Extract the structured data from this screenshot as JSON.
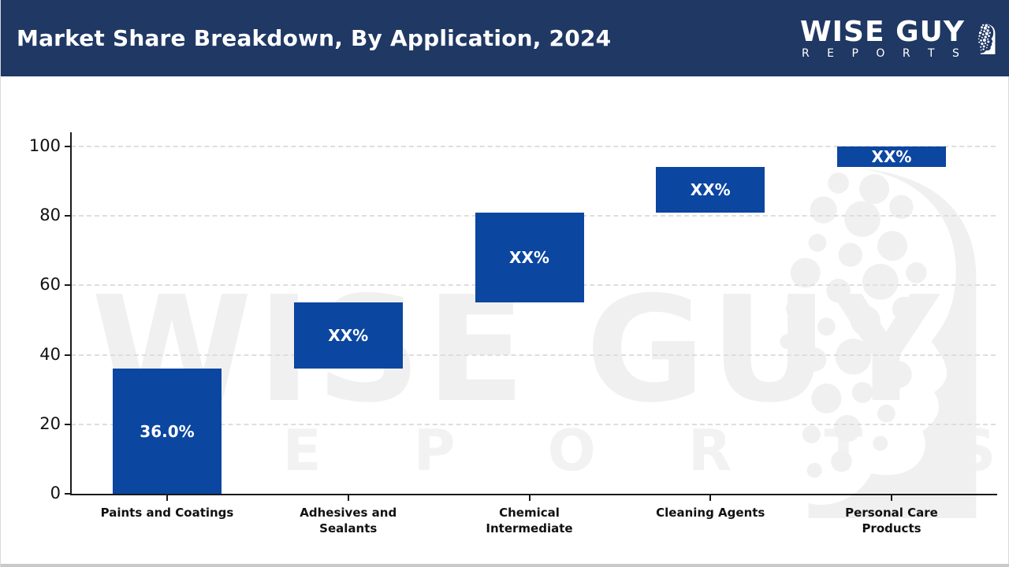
{
  "header": {
    "title": "Market Share Breakdown, By Application, 2024",
    "bg_color": "#1f3864",
    "logo": {
      "line1": "WISE GUY",
      "line2": "R E P O R T S"
    }
  },
  "watermark": {
    "line1": "WISE GUY",
    "line2": "R E P O R T S"
  },
  "chart_data": {
    "type": "bar",
    "subtype": "waterfall",
    "title": "Market Share Breakdown, By Application, 2024",
    "categories": [
      "Paints and Coatings",
      "Adhesives and Sealants",
      "Chemical Intermediate",
      "Cleaning Agents",
      "Personal Care Products"
    ],
    "segments": [
      {
        "start": 0,
        "end": 36,
        "label": "36.0%"
      },
      {
        "start": 36,
        "end": 55,
        "label": "XX%"
      },
      {
        "start": 55,
        "end": 81,
        "label": "XX%"
      },
      {
        "start": 81,
        "end": 94,
        "label": "XX%"
      },
      {
        "start": 94,
        "end": 100,
        "label": "XX%"
      }
    ],
    "yticks": [
      0,
      20,
      40,
      60,
      80,
      100
    ],
    "ylim": [
      0,
      105
    ],
    "xlabel": "",
    "ylabel": "",
    "legend": "none",
    "grid": "horizontal-dashed",
    "bar_color": "#0b46a0",
    "axis_color": "#1a1a1a",
    "gridline_color": "#dedede"
  }
}
